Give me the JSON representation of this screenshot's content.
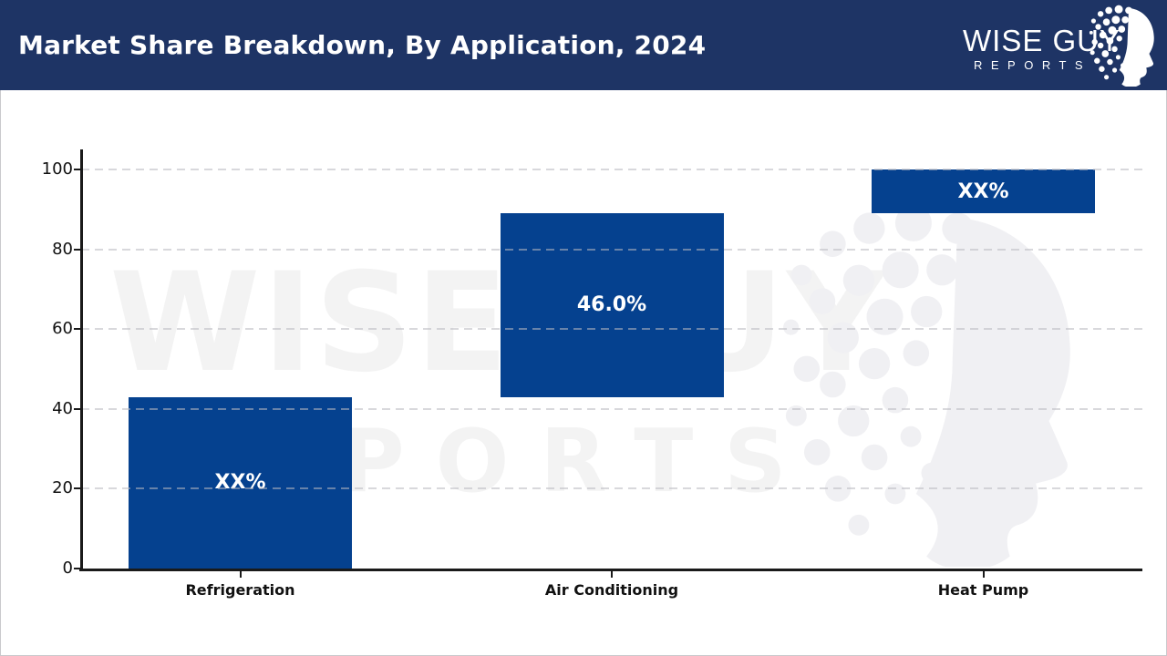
{
  "header": {
    "title": "Market Share Breakdown, By Application, 2024",
    "logo": {
      "line1": "WISE GUY",
      "line2": "REPORTS"
    }
  },
  "watermark": {
    "line1": "WISE GUY",
    "line2": "REPORTS"
  },
  "chart_data": {
    "type": "bar",
    "subtype": "waterfall-breakdown",
    "title": "Market Share Breakdown, By Application, 2024",
    "categories": [
      "Refrigeration",
      "Air Conditioning",
      "Heat Pump"
    ],
    "bars": [
      {
        "category": "Refrigeration",
        "start": 0,
        "end": 43,
        "label": "XX%"
      },
      {
        "category": "Air Conditioning",
        "start": 43,
        "end": 89,
        "label": "46.0%"
      },
      {
        "category": "Heat Pump",
        "start": 89,
        "end": 100,
        "label": "XX%"
      }
    ],
    "yticks": [
      0,
      20,
      40,
      60,
      80,
      100
    ],
    "ylim": [
      0,
      105
    ],
    "xlabel": "",
    "ylabel": "",
    "grid": "dashed-horizontal",
    "legend": "none",
    "bar_color": "#05418f"
  },
  "colors": {
    "header_bg": "#1e3465",
    "bar": "#05418f",
    "grid": "#d9d9d9",
    "axis": "#1a1a1a",
    "watermark": "#f2f2f2"
  }
}
